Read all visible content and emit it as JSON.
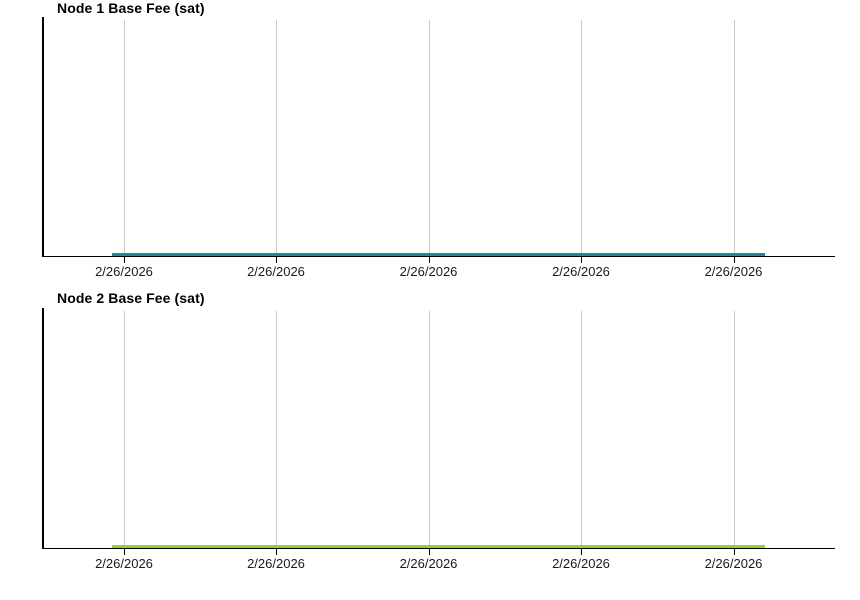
{
  "page": {
    "background": "#ffffff"
  },
  "colors": {
    "axis": "#000000",
    "gridline": "#c9c9c9",
    "tick_label": "#1a1a1a",
    "node1_line": "#1f8a99",
    "node2_line": "#9acd32"
  },
  "charts": [
    {
      "title": "Node 1 Base Fee (sat)",
      "line_color": "#1f8a99",
      "x_ticks": [
        "2/26/2026",
        "2/26/2026",
        "2/26/2026",
        "2/26/2026",
        "2/26/2026"
      ]
    },
    {
      "title": "Node 2 Base Fee (sat)",
      "line_color": "#9acd32",
      "x_ticks": [
        "2/26/2026",
        "2/26/2026",
        "2/26/2026",
        "2/26/2026",
        "2/26/2026"
      ]
    }
  ],
  "chart_data": [
    {
      "type": "line",
      "title": "Node 1 Base Fee (sat)",
      "x": [
        "2/26/2026",
        "2/26/2026",
        "2/26/2026",
        "2/26/2026",
        "2/26/2026"
      ],
      "series": [
        {
          "name": "Node 1 Base Fee (sat)",
          "color": "#1f8a99",
          "values": [
            1,
            1,
            1,
            1,
            1
          ]
        }
      ],
      "xlabel": "",
      "ylabel": "",
      "grid": "vertical-only",
      "legend": "none",
      "line_shape": "flat-constant-at-bottom"
    },
    {
      "type": "line",
      "title": "Node 2 Base Fee (sat)",
      "x": [
        "2/26/2026",
        "2/26/2026",
        "2/26/2026",
        "2/26/2026",
        "2/26/2026"
      ],
      "series": [
        {
          "name": "Node 2 Base Fee (sat)",
          "color": "#9acd32",
          "values": [
            1,
            1,
            1,
            1,
            1
          ]
        }
      ],
      "xlabel": "",
      "ylabel": "",
      "grid": "vertical-only",
      "legend": "none",
      "line_shape": "flat-constant-at-bottom"
    }
  ]
}
